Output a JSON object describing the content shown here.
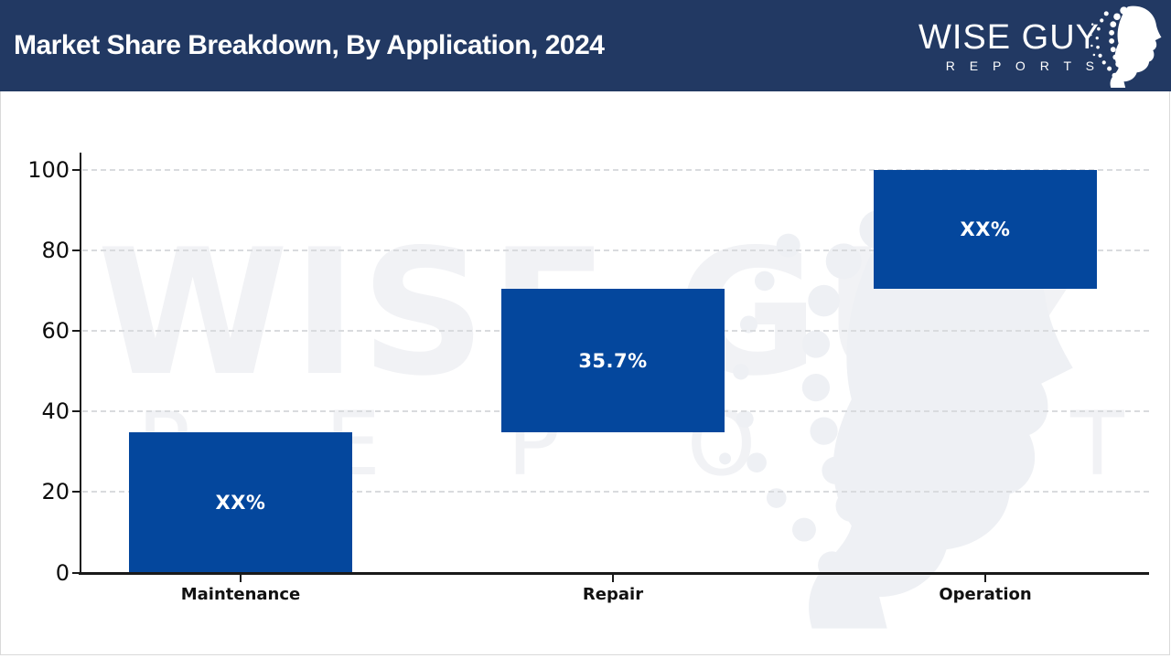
{
  "header": {
    "title": "Market Share Breakdown, By Application, 2024",
    "logo": {
      "wordmark": "WISE GUY",
      "subtext": "R E P O R T S"
    }
  },
  "watermark": {
    "line1": "WISE GUY",
    "line2": "R E P O R T S"
  },
  "icons": {
    "logo_face": "dotted-head-profile-icon"
  },
  "colors": {
    "header_bg": "#223963",
    "bar_fill": "#04479d",
    "bar_label_text": "#ffffff",
    "axis": "#1a1a1a",
    "grid": "#d9dbde",
    "watermark": "#f1f2f5"
  },
  "chart_data": {
    "type": "bar",
    "subtype": "floating-waterfall",
    "title": "Market Share Breakdown, By Application, 2024",
    "categories": [
      "Maintenance",
      "Repair",
      "Operation"
    ],
    "series": [
      {
        "name": "Market share (%)",
        "segments": [
          {
            "category": "Maintenance",
            "start": 0,
            "end": 34.8,
            "label": "XX%"
          },
          {
            "category": "Repair",
            "start": 34.8,
            "end": 70.5,
            "label": "35.7%"
          },
          {
            "category": "Operation",
            "start": 70.5,
            "end": 100,
            "label": "XX%"
          }
        ]
      }
    ],
    "xlabel": "",
    "ylabel": "",
    "ylim": [
      0,
      104
    ],
    "yticks": [
      0,
      20,
      40,
      60,
      80,
      100
    ],
    "grid": "horizontal-dashed",
    "legend": "none"
  }
}
